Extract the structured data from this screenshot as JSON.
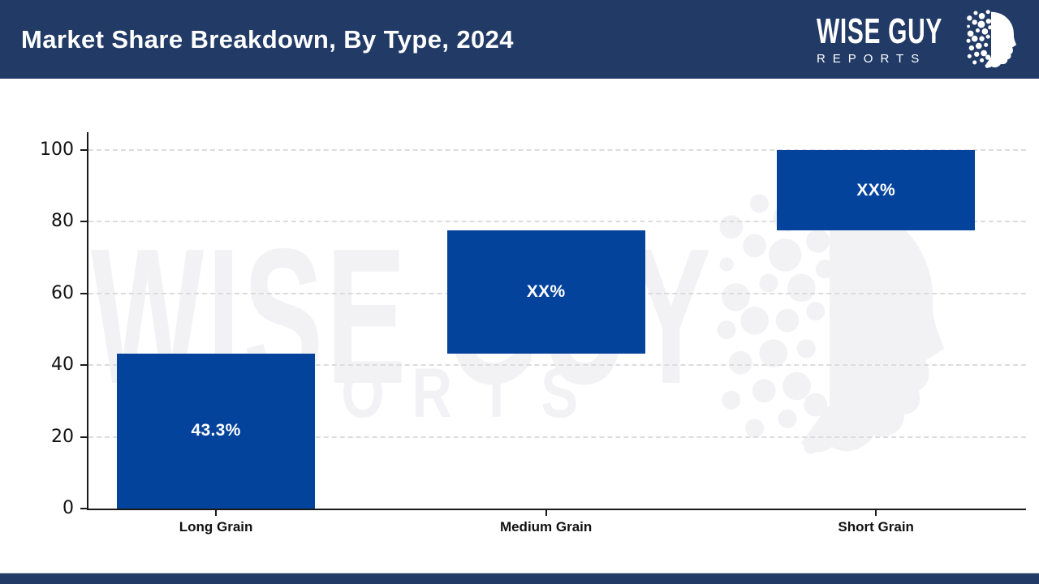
{
  "header": {
    "title": "Market Share Breakdown, By Type, 2024",
    "logo": {
      "line1": "WISE GUY",
      "line2": "REPORTS",
      "icon": "head-profile-dots-icon"
    }
  },
  "watermark": {
    "line1": "WISE GUY",
    "line2": "REPORTS",
    "icon": "head-profile-dots-icon"
  },
  "chart_data": {
    "type": "bar",
    "subtype": "waterfall-floating-bars",
    "title": "Market Share Breakdown, By Type, 2024",
    "categories": [
      "Long Grain",
      "Medium Grain",
      "Short Grain"
    ],
    "bars": [
      {
        "category": "Long Grain",
        "start": 0,
        "end": 43.3,
        "label": "43.3%"
      },
      {
        "category": "Medium Grain",
        "start": 43.3,
        "end": 77.5,
        "label": "XX%"
      },
      {
        "category": "Short Grain",
        "start": 77.5,
        "end": 100,
        "label": "XX%"
      }
    ],
    "xlabel": "",
    "ylabel": "",
    "ylim": [
      0,
      100
    ],
    "yticks": [
      0,
      20,
      40,
      60,
      80,
      100
    ],
    "grid": "horizontal-dashed",
    "legend": "none",
    "bar_color": "#04439c",
    "bar_label_color": "#ffffff"
  },
  "colors": {
    "header_bg": "#213a66",
    "footer_bg": "#213a66",
    "title_text": "#ffffff",
    "axis": "#1a1a1a",
    "gridline": "#dcdcdc",
    "watermark": "#f2f2f4",
    "background": "#ffffff"
  }
}
